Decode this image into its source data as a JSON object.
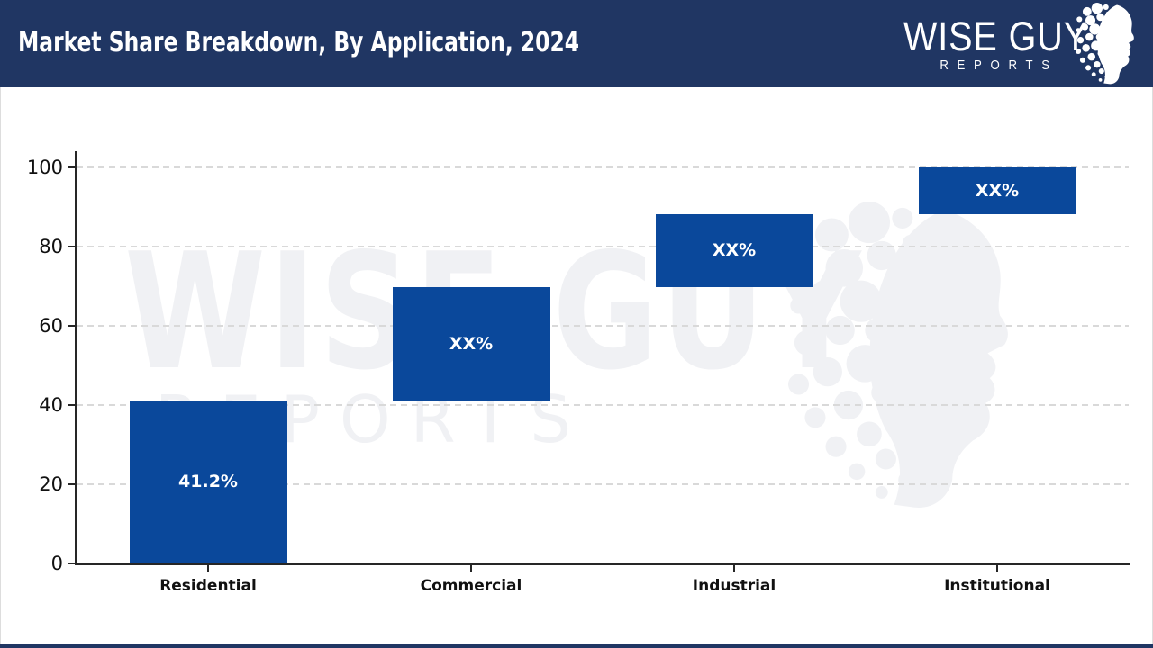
{
  "header": {
    "title": "Market Share Breakdown, By Application, 2024",
    "logo": {
      "wordmark": "WISE GUY",
      "subtitle": "REPORTS"
    }
  },
  "watermark": {
    "line1": "WISE GUY",
    "line2": "REPORTS"
  },
  "colors": {
    "header_bg": "#203663",
    "bar_fill": "#0a489b",
    "bar_label": "#ffffff",
    "gridline": "#d9d9d9",
    "axis": "#262626",
    "tick_label": "#111111",
    "title_text": "#ffffff",
    "watermark": "#f0f1f4"
  },
  "chart_data": {
    "type": "bar",
    "subtype": "waterfall",
    "title": "Market Share Breakdown, By Application, 2024",
    "unit": "%",
    "categories": [
      "Residential",
      "Commercial",
      "Industrial",
      "Institutional"
    ],
    "segments": [
      {
        "label": "Residential",
        "start": 0,
        "end": 41.2,
        "value_label": "41.2%",
        "value_estimate": 41.2
      },
      {
        "label": "Commercial",
        "start": 41.2,
        "end": 69.8,
        "value_label": "XX%",
        "value_estimate": 28.6
      },
      {
        "label": "Industrial",
        "start": 69.8,
        "end": 88.2,
        "value_label": "XX%",
        "value_estimate": 18.4
      },
      {
        "label": "Institutional",
        "start": 88.2,
        "end": 100,
        "value_label": "XX%",
        "value_estimate": 11.8
      }
    ],
    "yticks": [
      0,
      20,
      40,
      60,
      80,
      100
    ],
    "ylim": [
      0,
      104
    ],
    "xlabel": "",
    "ylabel": "",
    "grid": "horizontal-dashed",
    "legend": "none"
  }
}
